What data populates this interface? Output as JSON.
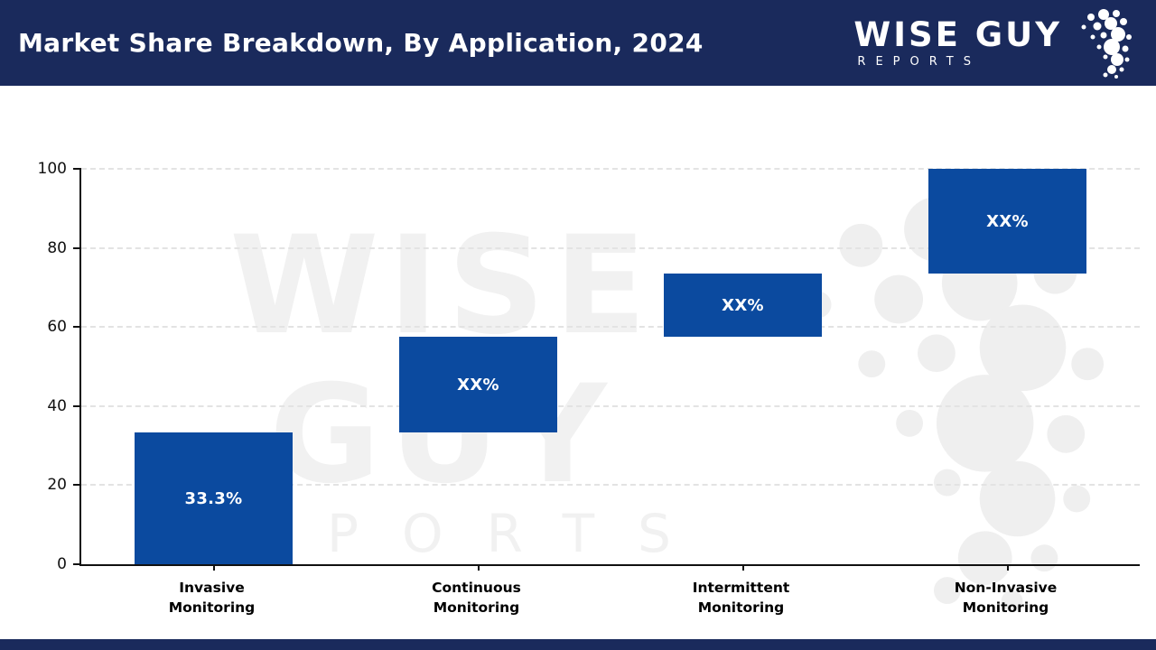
{
  "header": {
    "title": "Market Share Breakdown, By Application, 2024",
    "logo": {
      "line1": "WISE GUY",
      "line2": "REPORTS"
    }
  },
  "watermark": {
    "line1": "WISE GUY",
    "line2": "REPORTS"
  },
  "colors": {
    "header_bg": "#1a2a5c",
    "bar": "#0b4a9f",
    "bar_label_text": "#ffffff",
    "axis": "#111111",
    "gridline": "#e3e3e3",
    "watermark": "#f1f1f1"
  },
  "chart_data": {
    "type": "bar",
    "subtype": "floating-waterfall",
    "title": "Market Share Breakdown, By Application, 2024",
    "categories": [
      [
        "Invasive",
        "Monitoring"
      ],
      [
        "Continuous",
        "Monitoring"
      ],
      [
        "Intermittent",
        "Monitoring"
      ],
      [
        "Non-Invasive",
        "Monitoring"
      ]
    ],
    "segments": [
      {
        "category": "Invasive Monitoring",
        "start": 0,
        "end": 33.3,
        "label": "33.3%"
      },
      {
        "category": "Continuous Monitoring",
        "start": 33.3,
        "end": 57.5,
        "label": "XX%"
      },
      {
        "category": "Intermittent Monitoring",
        "start": 57.5,
        "end": 73.5,
        "label": "XX%"
      },
      {
        "category": "Non-Invasive Monitoring",
        "start": 73.5,
        "end": 100,
        "label": "XX%"
      }
    ],
    "xlabel": "",
    "ylabel": "",
    "ylim": [
      0,
      100
    ],
    "yticks": [
      0,
      20,
      40,
      60,
      80,
      100
    ],
    "grid": "horizontal-dashed",
    "legend": "none"
  }
}
